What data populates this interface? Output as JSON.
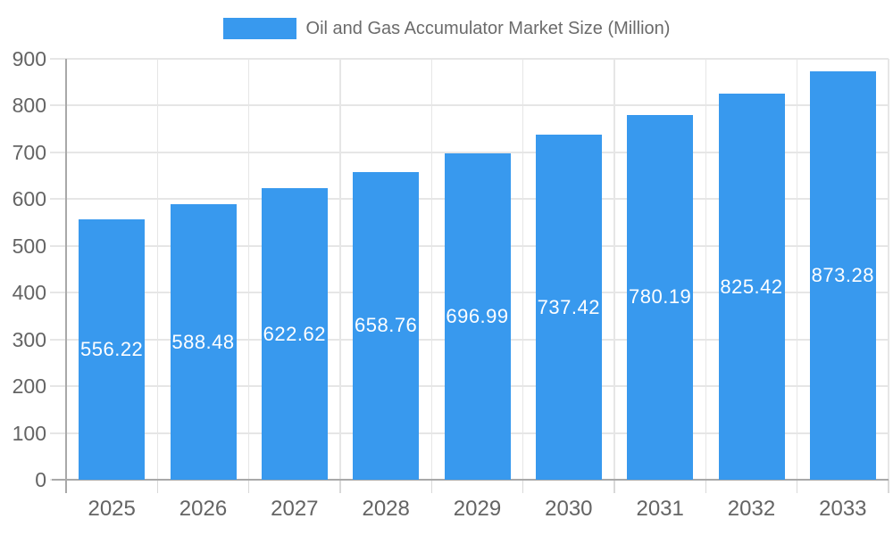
{
  "chart_data": {
    "type": "bar",
    "title": "Oil and Gas Accumulator Market Size (Million)",
    "legend": [
      "Oil and Gas Accumulator Market Size (Million)"
    ],
    "legend_position": "top",
    "categories": [
      "2025",
      "2026",
      "2027",
      "2028",
      "2029",
      "2030",
      "2031",
      "2032",
      "2033"
    ],
    "values": [
      556.22,
      588.48,
      622.62,
      658.76,
      696.99,
      737.42,
      780.19,
      825.42,
      873.28
    ],
    "value_labels": [
      "556.22",
      "588.48",
      "622.62",
      "658.76",
      "696.99",
      "737.42",
      "780.19",
      "825.42",
      "873.28"
    ],
    "value_label_position": "inside-center",
    "xlabel": "",
    "ylabel": "",
    "ylim": [
      0,
      900
    ],
    "ytick_step": 100,
    "ytick_labels": [
      "0",
      "100",
      "200",
      "300",
      "400",
      "500",
      "600",
      "700",
      "800",
      "900"
    ],
    "grid": "on"
  },
  "colors": {
    "bar": "#3899ee",
    "grid": "#e6e6e6",
    "axis": "#a9a9a9",
    "tick": "#d9d9d9",
    "tick_label": "#646464",
    "legend_label": "#6b6b6b",
    "value_label": "#ffffff",
    "background": "#ffffff"
  }
}
